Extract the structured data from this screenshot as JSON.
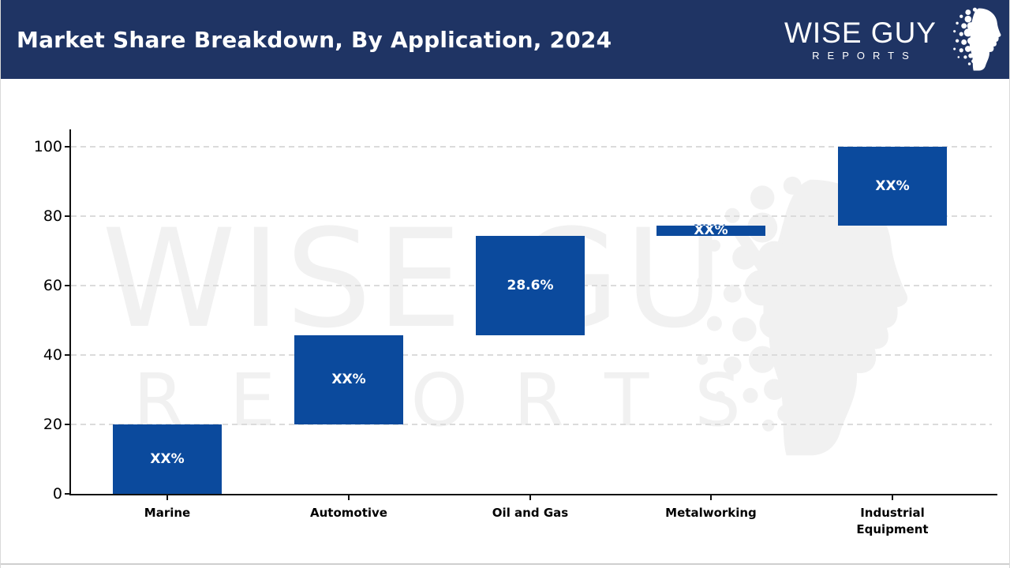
{
  "header": {
    "title": "Market Share Breakdown, By Application, 2024",
    "logo": {
      "line1": "WISE GUY",
      "line2": "REPORTS"
    }
  },
  "watermark": {
    "line1": "WISE GUY",
    "line2": "REPORTS"
  },
  "colors": {
    "header_bg": "#1F3464",
    "bar_blue": "#0B4A9D",
    "gridline": "#DBDBDB",
    "axis": "#111111",
    "bar_label_text": "#FFFFFF",
    "watermark": "#F1F1F1"
  },
  "chart_data": {
    "type": "bar",
    "subtype": "waterfall",
    "title": "Market Share Breakdown, By Application, 2024",
    "xlabel": "",
    "ylabel": "",
    "ylim": [
      0,
      100
    ],
    "y_ticks": [
      0,
      20,
      40,
      60,
      80,
      100
    ],
    "grid": "horizontal-dashed",
    "legend": "none",
    "categories": [
      "Marine",
      "Automotive",
      "Oil and Gas",
      "Metalworking",
      "Industrial Equipment"
    ],
    "segments": [
      {
        "category": "Marine",
        "start": 0,
        "end": 20,
        "value": 20.0,
        "label": "XX%"
      },
      {
        "category": "Automotive",
        "start": 20,
        "end": 45.7,
        "value": 25.7,
        "label": "XX%"
      },
      {
        "category": "Oil and Gas",
        "start": 45.7,
        "end": 74.3,
        "value": 28.6,
        "label": "28.6%"
      },
      {
        "category": "Metalworking",
        "start": 74.3,
        "end": 77.3,
        "value": 3.0,
        "label": "XX%"
      },
      {
        "category": "Industrial Equipment",
        "start": 77.3,
        "end": 100,
        "value": 22.7,
        "label": "XX%"
      }
    ]
  }
}
